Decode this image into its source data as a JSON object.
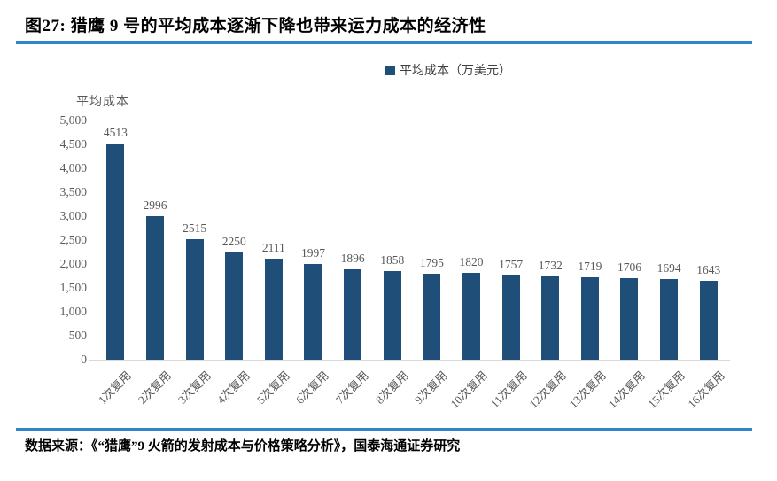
{
  "figure": {
    "title": "图27: 猎鹰 9 号的平均成本逐渐下降也带来运力成本的经济性",
    "source": "数据来源：《“猎鹰”9 火箭的发射成本与价格策略分析》，国泰海通证券研究"
  },
  "chart_data": {
    "type": "bar",
    "title": "",
    "legend": "平均成本（万美元）",
    "ylabel": "平均成本",
    "xlabel": "",
    "categories": [
      "1次复用",
      "2次复用",
      "3次复用",
      "4次复用",
      "5次复用",
      "6次复用",
      "7次复用",
      "8次复用",
      "9次复用",
      "10次复用",
      "11次复用",
      "12次复用",
      "13次复用",
      "14次复用",
      "15次复用",
      "16次复用"
    ],
    "values": [
      4513,
      2996,
      2515,
      2250,
      2111,
      1997,
      1896,
      1858,
      1795,
      1820,
      1757,
      1732,
      1719,
      1706,
      1694,
      1643
    ],
    "ylim": [
      0,
      5000
    ],
    "ytick_step": 500,
    "yticks": [
      "5,000",
      "4,500",
      "4,000",
      "3,500",
      "3,000",
      "2,500",
      "2,000",
      "1,500",
      "1,000",
      "500",
      "0"
    ],
    "grid": "off",
    "legend_position": "top-center",
    "colors": {
      "bar": "#1F4E79",
      "accent_rule": "#2E86C8",
      "axis_text": "#595959",
      "baseline": "#D9D9D9"
    }
  }
}
